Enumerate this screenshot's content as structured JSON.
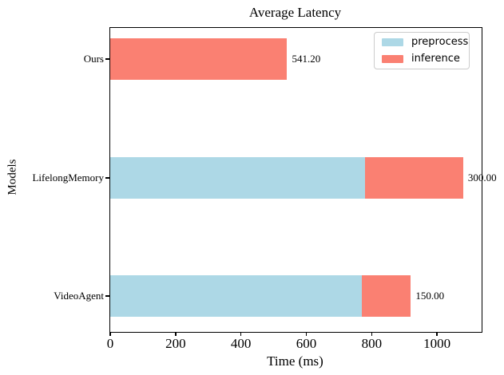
{
  "chart_data": {
    "type": "bar",
    "orientation": "horizontal",
    "stacked": true,
    "title": "Average Latency",
    "xlabel": "Time (ms)",
    "ylabel": "Models",
    "categories": [
      "Ours",
      "LifelongMemory",
      "VideoAgent"
    ],
    "series": [
      {
        "name": "preprocess",
        "color": "#ADD8E6",
        "values": [
          0,
          780.0,
          769.77
        ],
        "labels": [
          "",
          "780.00",
          "769.77"
        ]
      },
      {
        "name": "inference",
        "color": "#FA8072",
        "values": [
          541.2,
          300.0,
          150.0
        ],
        "labels": [
          "541.20",
          "300.00",
          "150.00"
        ]
      }
    ],
    "xlim": [
      0,
      1134
    ],
    "xticks": [
      "0",
      "200",
      "400",
      "600",
      "800",
      "1000"
    ],
    "xtick_values": [
      0,
      200,
      400,
      600,
      800,
      1000
    ],
    "legend_position": "upper right",
    "grid": false
  }
}
